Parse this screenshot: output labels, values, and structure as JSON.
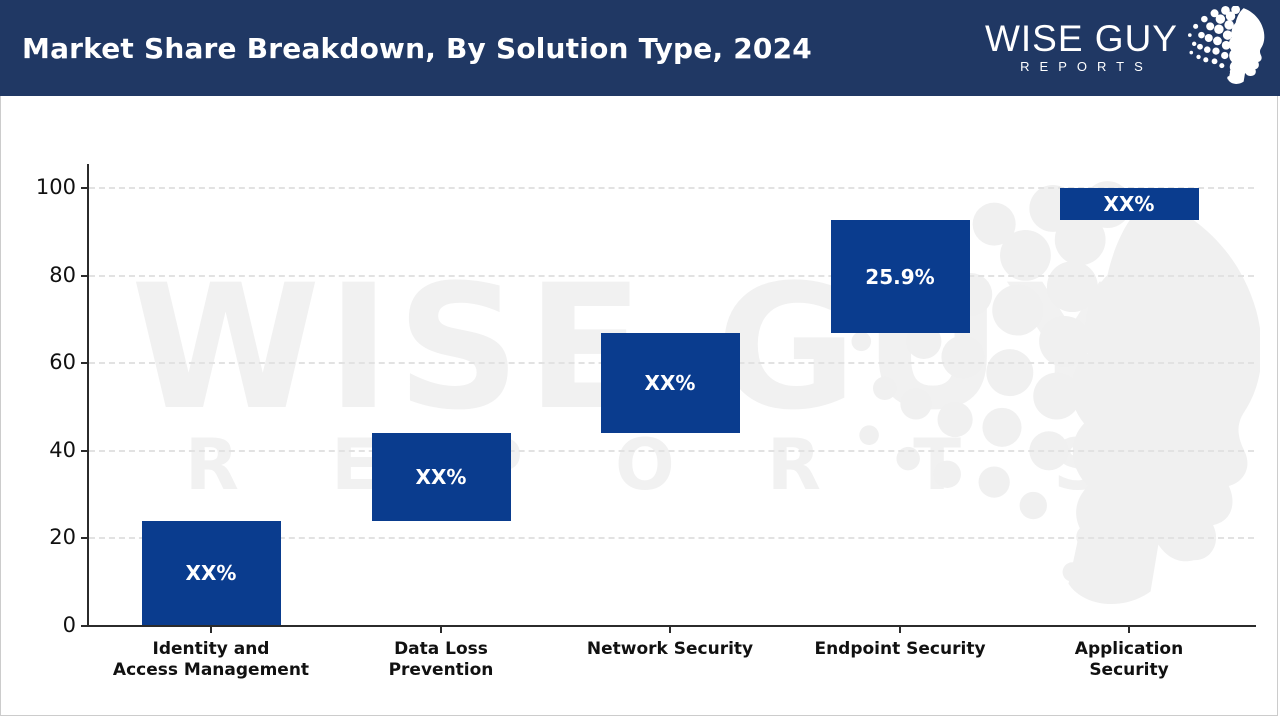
{
  "header": {
    "title": "Market Share Breakdown, By Solution Type, 2024",
    "bg_color": "#203864",
    "logo": {
      "line1": "WISE GUY",
      "line2": "REPORTS"
    }
  },
  "watermark": {
    "line1": "WISE GUY",
    "line2": "R E P O R T S"
  },
  "chart_data": {
    "type": "bar",
    "subtype": "floating-waterfall",
    "title": "Market Share Breakdown, By Solution Type, 2024",
    "categories": [
      "Identity and\nAccess Management",
      "Data Loss\nPrevention",
      "Network Security",
      "Endpoint Security",
      "Application\nSecurity"
    ],
    "bars": [
      {
        "category": "Identity and Access Management",
        "start": 0,
        "end": 24,
        "label": "XX%"
      },
      {
        "category": "Data Loss Prevention",
        "start": 24,
        "end": 44,
        "label": "XX%"
      },
      {
        "category": "Network Security",
        "start": 44,
        "end": 66.8,
        "label": "XX%"
      },
      {
        "category": "Endpoint Security",
        "start": 66.8,
        "end": 92.7,
        "label": "25.9%"
      },
      {
        "category": "Application Security",
        "start": 92.7,
        "end": 100,
        "label": "XX%"
      }
    ],
    "yticks": [
      0,
      20,
      40,
      60,
      80,
      100
    ],
    "ylim": [
      0,
      105
    ],
    "xlabel": "",
    "ylabel": "",
    "grid": "horizontal-dashed",
    "legend": "none",
    "bar_color": "#0a3c8e",
    "bar_label_color": "#ffffff",
    "header_color": "#203864"
  }
}
